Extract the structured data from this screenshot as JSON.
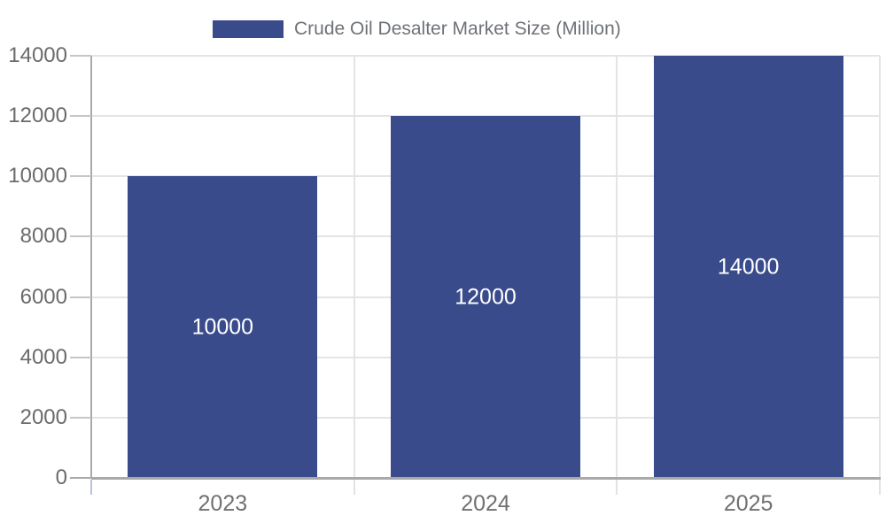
{
  "legend": {
    "label": "Crude Oil Desalter Market Size (Million)",
    "swatch_color": "#394b8b"
  },
  "chart_data": {
    "type": "bar",
    "title": "Crude Oil Desalter Market Size (Million)",
    "categories": [
      "2023",
      "2024",
      "2025"
    ],
    "values": [
      10000,
      12000,
      14000
    ],
    "bar_labels": [
      "10000",
      "12000",
      "14000"
    ],
    "series": [
      {
        "name": "Crude Oil Desalter Market Size (Million)",
        "values": [
          10000,
          12000,
          14000
        ]
      }
    ],
    "xlabel": "",
    "ylabel": "",
    "ylim": [
      0,
      14000
    ],
    "yticks": [
      0,
      2000,
      4000,
      6000,
      8000,
      10000,
      12000,
      14000
    ],
    "ytick_labels": [
      "0",
      "2000",
      "4000",
      "6000",
      "8000",
      "10000",
      "12000",
      "14000"
    ],
    "grid": true,
    "legend_position": "top",
    "bar_color": "#394b8b",
    "bar_label_color": "#ffffff"
  }
}
